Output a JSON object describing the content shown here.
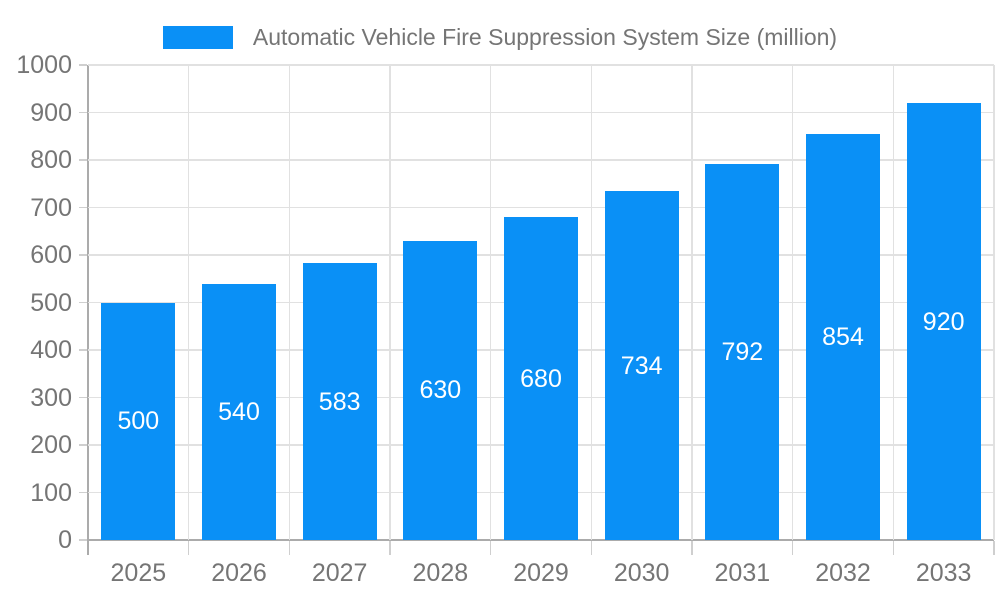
{
  "legend": {
    "label": "Automatic Vehicle Fire Suppression System Size (million)"
  },
  "chart_data": {
    "type": "bar",
    "title": "Automatic Vehicle Fire Suppression System Size (million)",
    "categories": [
      "2025",
      "2026",
      "2027",
      "2028",
      "2029",
      "2030",
      "2031",
      "2032",
      "2033"
    ],
    "values": [
      500,
      540,
      583,
      630,
      680,
      734,
      792,
      854,
      920
    ],
    "xlabel": "",
    "ylabel": "",
    "ylim": [
      0,
      1000
    ],
    "ytick_step": 100,
    "ytick_labels": [
      "0",
      "100",
      "200",
      "300",
      "400",
      "500",
      "600",
      "700",
      "800",
      "900",
      "1000"
    ],
    "grid": true,
    "legend_position": "top",
    "bar_label_position": "inside-center",
    "colors": {
      "bar": "#0A90F6",
      "bar_label": "#FFFFFF",
      "axis_text": "#757575",
      "gridline": "#E1E1E1",
      "axis_line": "#ABABAB",
      "tick": "#CFCFCF",
      "background": "#FFFFFF"
    }
  }
}
